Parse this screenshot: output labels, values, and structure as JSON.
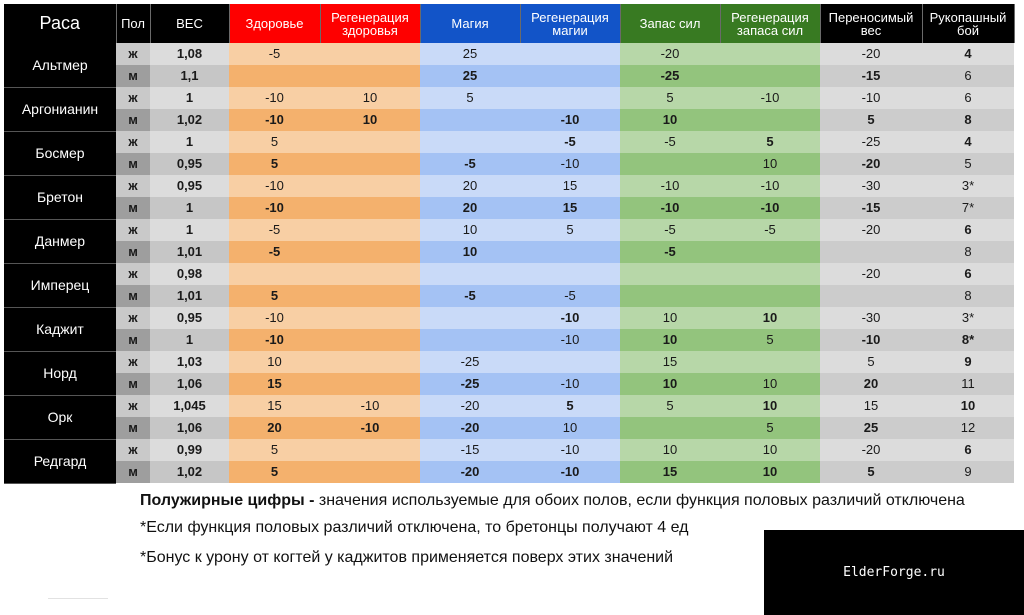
{
  "table": {
    "headers": {
      "race": "Раса",
      "sex": "Пол",
      "weight": "ВЕС",
      "health": "Здоровье",
      "health_regen": "Регенерация здоровья",
      "magicka": "Магия",
      "magicka_regen": "Регенерация магии",
      "stamina": "Запас сил",
      "stamina_regen": "Регенерация запаса сил",
      "carry_weight": "Переносимый вес",
      "unarmed": "Рукопашный бой"
    },
    "header_colors": {
      "black": "#000000",
      "health": "#fe0000",
      "magicka": "#1254c8",
      "stamina": "#387a22"
    },
    "races": [
      {
        "name": "Альтмер",
        "rows": [
          {
            "sex": "ж",
            "weight": "1,08",
            "health": "-5",
            "health_regen": "",
            "magicka": "25",
            "magicka_regen": "",
            "stamina": "-20",
            "stamina_regen": "",
            "carry": "-20",
            "unarmed": "4"
          },
          {
            "sex": "м",
            "weight": "1,1",
            "health": "",
            "health_regen": "",
            "magicka": "25",
            "magicka_regen": "",
            "stamina": "-25",
            "stamina_regen": "",
            "carry": "-15",
            "unarmed": "6"
          }
        ]
      },
      {
        "name": "Аргонианин",
        "rows": [
          {
            "sex": "ж",
            "weight": "1",
            "health": "-10",
            "health_regen": "10",
            "magicka": "5",
            "magicka_regen": "",
            "stamina": "5",
            "stamina_regen": "-10",
            "carry": "-10",
            "unarmed": "6"
          },
          {
            "sex": "м",
            "weight": "1,02",
            "health": "-10",
            "health_regen": "10",
            "magicka": "",
            "magicka_regen": "-10",
            "stamina": "10",
            "stamina_regen": "",
            "carry": "5",
            "unarmed": "8"
          }
        ]
      },
      {
        "name": "Босмер",
        "rows": [
          {
            "sex": "ж",
            "weight": "1",
            "health": "5",
            "health_regen": "",
            "magicka": "",
            "magicka_regen": "-5",
            "stamina": "-5",
            "stamina_regen": "5",
            "carry": "-25",
            "unarmed": "4"
          },
          {
            "sex": "м",
            "weight": "0,95",
            "health": "5",
            "health_regen": "",
            "magicka": "-5",
            "magicka_regen": "-10",
            "stamina": "",
            "stamina_regen": "10",
            "carry": "-20",
            "unarmed": "5"
          }
        ]
      },
      {
        "name": "Бретон",
        "rows": [
          {
            "sex": "ж",
            "weight": "0,95",
            "health": "-10",
            "health_regen": "",
            "magicka": "20",
            "magicka_regen": "15",
            "stamina": "-10",
            "stamina_regen": "-10",
            "carry": "-30",
            "unarmed": "3*"
          },
          {
            "sex": "м",
            "weight": "1",
            "health": "-10",
            "health_regen": "",
            "magicka": "20",
            "magicka_regen": "15",
            "stamina": "-10",
            "stamina_regen": "-10",
            "carry": "-15",
            "unarmed": "7*"
          }
        ]
      },
      {
        "name": "Данмер",
        "rows": [
          {
            "sex": "ж",
            "weight": "1",
            "health": "-5",
            "health_regen": "",
            "magicka": "10",
            "magicka_regen": "5",
            "stamina": "-5",
            "stamina_regen": "-5",
            "carry": "-20",
            "unarmed": "6"
          },
          {
            "sex": "м",
            "weight": "1,01",
            "health": "-5",
            "health_regen": "",
            "magicka": "10",
            "magicka_regen": "",
            "stamina": "-5",
            "stamina_regen": "",
            "carry": "",
            "unarmed": "8"
          }
        ]
      },
      {
        "name": "Имперец",
        "rows": [
          {
            "sex": "ж",
            "weight": "0,98",
            "health": "",
            "health_regen": "",
            "magicka": "",
            "magicka_regen": "",
            "stamina": "",
            "stamina_regen": "",
            "carry": "-20",
            "unarmed": "6"
          },
          {
            "sex": "м",
            "weight": "1,01",
            "health": "5",
            "health_regen": "",
            "magicka": "-5",
            "magicka_regen": "-5",
            "stamina": "",
            "stamina_regen": "",
            "carry": "",
            "unarmed": "8"
          }
        ]
      },
      {
        "name": "Каджит",
        "rows": [
          {
            "sex": "ж",
            "weight": "0,95",
            "health": "-10",
            "health_regen": "",
            "magicka": "",
            "magicka_regen": "-10",
            "stamina": "10",
            "stamina_regen": "10",
            "carry": "-30",
            "unarmed": "3*"
          },
          {
            "sex": "м",
            "weight": "1",
            "health": "-10",
            "health_regen": "",
            "magicka": "",
            "magicka_regen": "-10",
            "stamina": "10",
            "stamina_regen": "5",
            "carry": "-10",
            "unarmed": "8*"
          }
        ]
      },
      {
        "name": "Норд",
        "rows": [
          {
            "sex": "ж",
            "weight": "1,03",
            "health": "10",
            "health_regen": "",
            "magicka": "-25",
            "magicka_regen": "",
            "stamina": "15",
            "stamina_regen": "",
            "carry": "5",
            "unarmed": "9"
          },
          {
            "sex": "м",
            "weight": "1,06",
            "health": "15",
            "health_regen": "",
            "magicka": "-25",
            "magicka_regen": "-10",
            "stamina": "10",
            "stamina_regen": "10",
            "carry": "20",
            "unarmed": "11"
          }
        ]
      },
      {
        "name": "Орк",
        "rows": [
          {
            "sex": "ж",
            "weight": "1,045",
            "health": "15",
            "health_regen": "-10",
            "magicka": "-20",
            "magicka_regen": "5",
            "stamina": "5",
            "stamina_regen": "10",
            "carry": "15",
            "unarmed": "10"
          },
          {
            "sex": "м",
            "weight": "1,06",
            "health": "20",
            "health_regen": "-10",
            "magicka": "-20",
            "magicka_regen": "10",
            "stamina": "",
            "stamina_regen": "5",
            "carry": "25",
            "unarmed": "12"
          }
        ]
      },
      {
        "name": "Редгард",
        "rows": [
          {
            "sex": "ж",
            "weight": "0,99",
            "health": "5",
            "health_regen": "",
            "magicka": "-15",
            "magicka_regen": "-10",
            "stamina": "10",
            "stamina_regen": "10",
            "carry": "-20",
            "unarmed": "6"
          },
          {
            "sex": "м",
            "weight": "1,02",
            "health": "5",
            "health_regen": "",
            "magicka": "-20",
            "magicka_regen": "-10",
            "stamina": "15",
            "stamina_regen": "10",
            "carry": "5",
            "unarmed": "9"
          }
        ]
      }
    ],
    "bold_cells": {
      "0.0": [
        "unarmed"
      ],
      "0.1": [
        "magicka",
        "stamina",
        "carry"
      ],
      "1.1": [
        "health",
        "health_regen",
        "magicka_regen",
        "stamina",
        "carry",
        "unarmed"
      ],
      "2.0": [
        "magicka_regen",
        "stamina_regen",
        "unarmed"
      ],
      "2.1": [
        "health",
        "magicka",
        "carry"
      ],
      "3.1": [
        "health",
        "magicka",
        "magicka_regen",
        "stamina",
        "stamina_regen",
        "carry"
      ],
      "4.0": [
        "unarmed"
      ],
      "4.1": [
        "health",
        "magicka",
        "stamina"
      ],
      "5.0": [
        "unarmed"
      ],
      "5.1": [
        "health",
        "magicka"
      ],
      "6.0": [
        "magicka_regen",
        "stamina_regen"
      ],
      "6.1": [
        "health",
        "stamina",
        "carry",
        "unarmed"
      ],
      "7.0": [
        "unarmed"
      ],
      "7.1": [
        "health",
        "magicka",
        "stamina",
        "carry"
      ],
      "8.0": [
        "magicka_regen",
        "stamina_regen",
        "unarmed"
      ],
      "8.1": [
        "health",
        "health_regen",
        "magicka",
        "carry"
      ],
      "9.0": [
        "unarmed"
      ],
      "9.1": [
        "health",
        "magicka",
        "magicka_regen",
        "stamina",
        "stamina_regen",
        "carry"
      ]
    }
  },
  "notes": {
    "bold_label": "Полужирные цифры -",
    "bold_text": " значения используемые для обоих полов, если функция половых различий отключена",
    "breton_note": "*Если функция половых различий отключена, то бретонцы получают 4 ед",
    "khajiit_note": "*Бонус к урону от когтей у каджитов применяется поверх этих значений"
  },
  "watermark": {
    "text": "ElderForge.ru"
  }
}
